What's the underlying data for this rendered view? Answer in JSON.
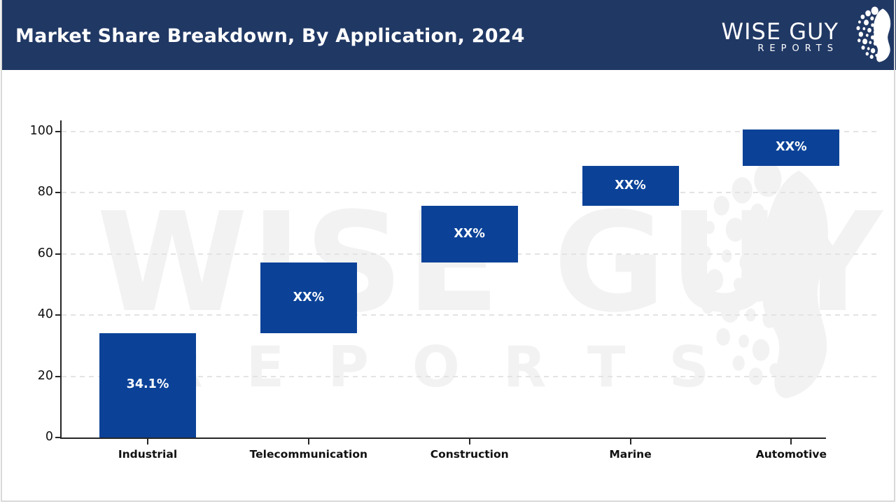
{
  "header": {
    "title": "Market Share Breakdown, By Application, 2024",
    "logo": {
      "line1": "WISE GUY",
      "line2": "REPORTS"
    }
  },
  "watermark": {
    "line1": "WISE GUY",
    "line2": "REPORTS"
  },
  "chart_data": {
    "type": "bar",
    "variant": "floating-waterfall",
    "title": "Market Share Breakdown, By Application, 2024",
    "categories": [
      "Industrial",
      "Telecommunication",
      "Construction",
      "Marine",
      "Automotive"
    ],
    "segments": [
      {
        "category": "Industrial",
        "start": 0,
        "end": 34.1,
        "label": "34.1%"
      },
      {
        "category": "Telecommunication",
        "start": 34.1,
        "end": 57.2,
        "label": "XX%"
      },
      {
        "category": "Construction",
        "start": 57.2,
        "end": 75.7,
        "label": "XX%"
      },
      {
        "category": "Marine",
        "start": 75.7,
        "end": 88.8,
        "label": "XX%"
      },
      {
        "category": "Automotive",
        "start": 88.8,
        "end": 100.7,
        "label": "XX%"
      }
    ],
    "yticks": [
      0,
      20,
      40,
      60,
      80,
      100
    ],
    "ylim": [
      0,
      103.5
    ],
    "xlabel": "",
    "ylabel": "",
    "grid": "horizontal-dashed",
    "legend": "none",
    "bar_color": "#0b4298"
  },
  "colors": {
    "header_bg": "#203864",
    "bar": "#0b4298",
    "grid": "#e3e3e3",
    "axis": "#262626",
    "watermark": "#f2f2f2",
    "frame_border": "#d9d9d9",
    "title_text": "#ffffff"
  }
}
